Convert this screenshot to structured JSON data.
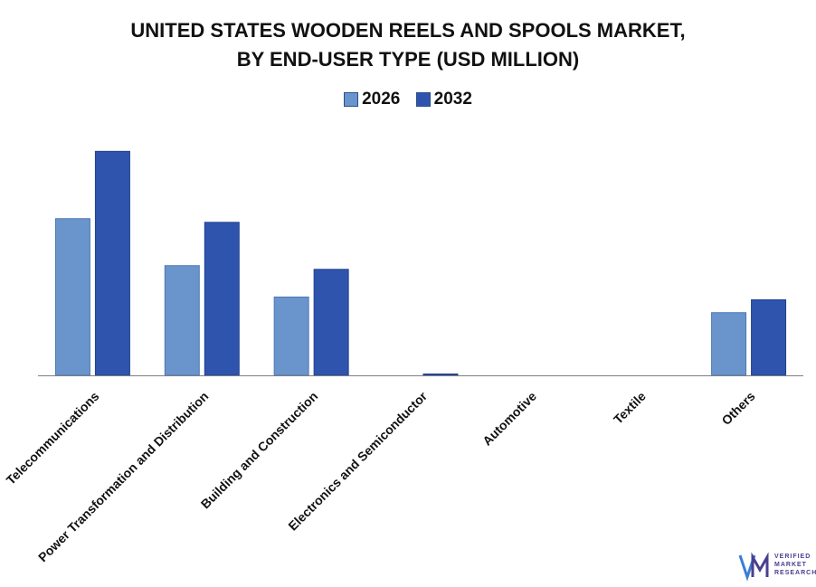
{
  "title_line1": "UNITED STATES WOODEN REELS AND SPOOLS MARKET,",
  "title_line2": "BY END-USER TYPE (USD MILLION)",
  "colors": {
    "s2026": "#6a95cc",
    "s2032": "#2f54ae",
    "axis": "#7f7f7f",
    "text": "#111111"
  },
  "logo": {
    "line1": "VERIFIED",
    "line2": "MARKET",
    "line3": "RESEARCH",
    "mark": "VMR-logo-icon"
  },
  "chart_data": {
    "type": "bar",
    "title": "UNITED STATES WOODEN REELS AND SPOOLS MARKET, BY END-USER TYPE (USD MILLION)",
    "categories": [
      "Telecommunications",
      "Power Transformation and Distribution",
      "Building and Construction",
      "Electronics and Semiconductor",
      "Automotive",
      "Textile",
      "Others"
    ],
    "series": [
      {
        "name": "2026",
        "values": [
          170,
          119,
          85,
          0,
          0,
          0,
          68
        ]
      },
      {
        "name": "2032",
        "values": [
          243,
          166,
          115,
          1.5,
          0,
          0,
          82
        ]
      }
    ],
    "ylim": [
      0,
      260
    ],
    "xlabel": "",
    "ylabel": "",
    "grid": false,
    "legend": "top-center"
  }
}
